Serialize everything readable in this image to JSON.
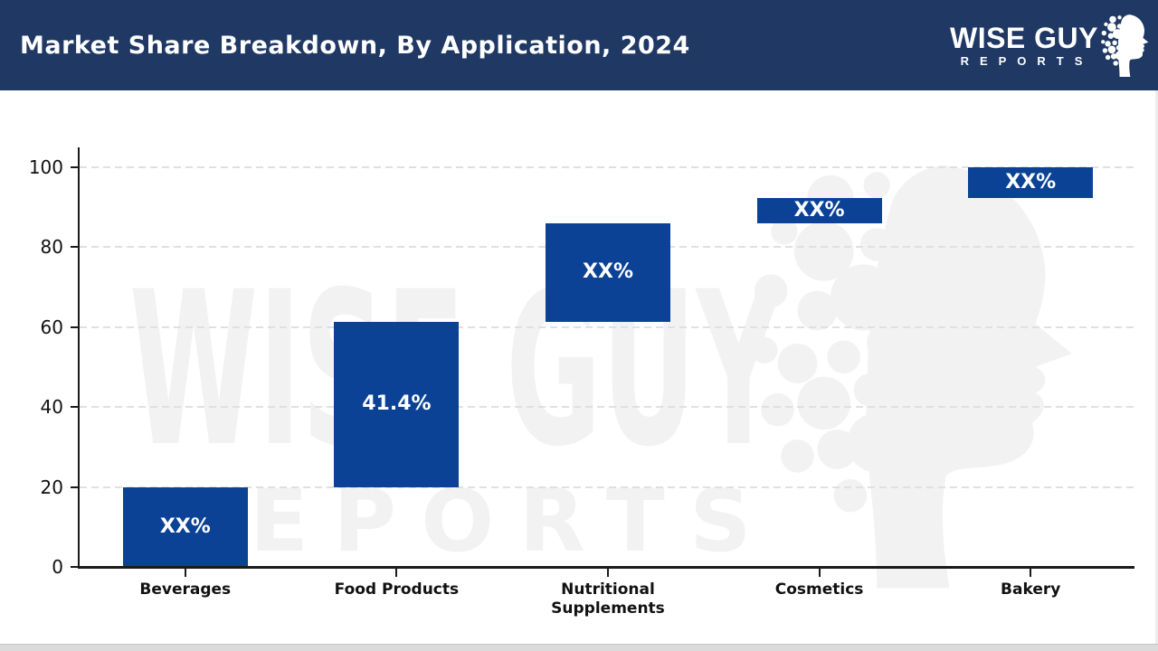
{
  "header": {
    "title": "Market Share Breakdown, By Application, 2024",
    "logo": {
      "wordmark": "WISE GUY",
      "subtitle": "REPORTS"
    }
  },
  "watermark": {
    "wordmark": "WISE GUY",
    "subtitle": "REPORTS"
  },
  "chart_data": {
    "type": "bar",
    "subtype": "waterfall",
    "title": "Market Share Breakdown, By Application, 2024",
    "xlabel": "",
    "ylabel": "",
    "ylim": [
      0,
      105
    ],
    "yticks": [
      0,
      20,
      40,
      60,
      80,
      100
    ],
    "grid": "horizontal-dashed",
    "legend": "none",
    "bar_color": "#0b4296",
    "bar_label_color": "#ffffff",
    "categories": [
      "Beverages",
      "Food Products",
      "Nutritional Supplements",
      "Cosmetics",
      "Bakery"
    ],
    "bars": [
      {
        "category": "Beverages",
        "start": 0,
        "end": 20,
        "label": "XX%"
      },
      {
        "category": "Food Products",
        "start": 20,
        "end": 61.4,
        "label": "41.4%"
      },
      {
        "category": "Nutritional Supplements",
        "start": 61.4,
        "end": 86,
        "label": "XX%"
      },
      {
        "category": "Cosmetics",
        "start": 86,
        "end": 92.4,
        "label": "XX%"
      },
      {
        "category": "Bakery",
        "start": 92.4,
        "end": 100,
        "label": "XX%"
      }
    ]
  }
}
